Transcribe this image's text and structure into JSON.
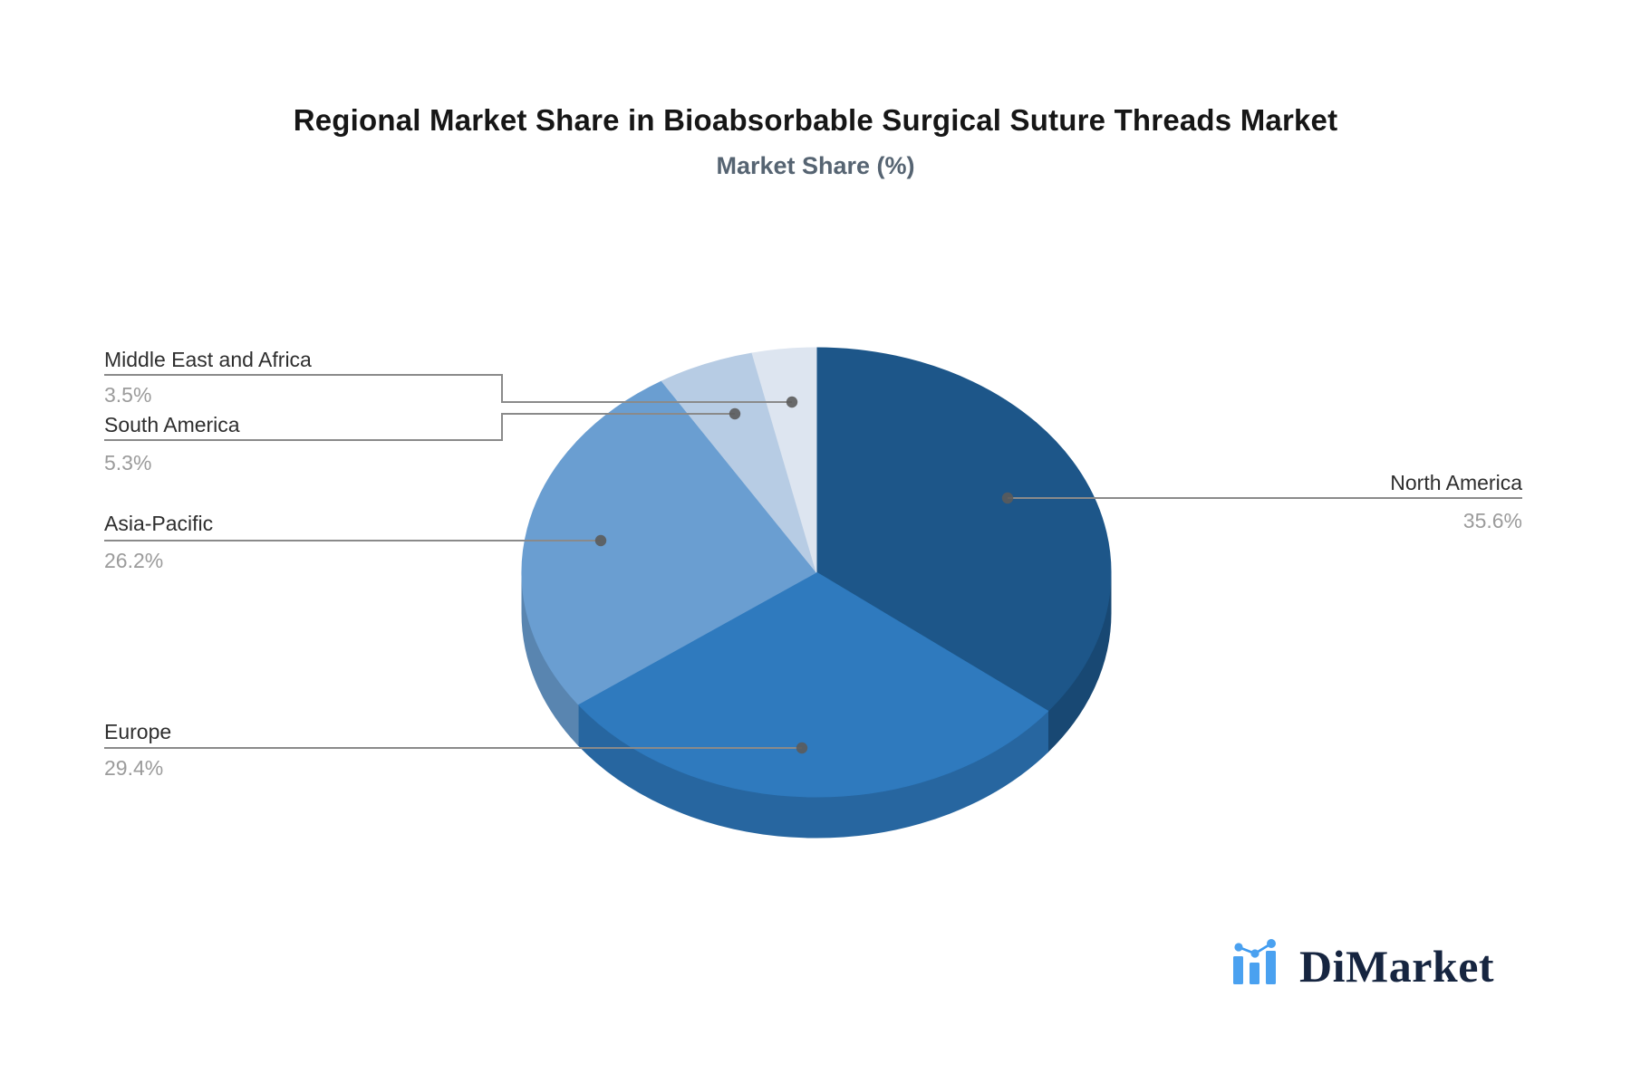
{
  "header": {
    "title": "Regional Market Share in Bioabsorbable Surgical Suture Threads Market",
    "subtitle": "Market Share (%)"
  },
  "chart_data": {
    "type": "pie",
    "title": "Regional Market Share in Bioabsorbable Surgical Suture Threads Market",
    "subtitle": "Market Share (%)",
    "unit": "%",
    "style": "3d-pie",
    "direction": "clockwise",
    "start_angle_deg": 0,
    "legend_position": "callout-labels",
    "slices": [
      {
        "label": "North America",
        "value": 35.6,
        "color": "#1d5689"
      },
      {
        "label": "Europe",
        "value": 29.4,
        "color": "#2f7abe"
      },
      {
        "label": "Asia-Pacific",
        "value": 26.2,
        "color": "#6a9ed1"
      },
      {
        "label": "South America",
        "value": 5.3,
        "color": "#b7cce4"
      },
      {
        "label": "Middle East and Africa",
        "value": 3.5,
        "color": "#dde5f0"
      }
    ]
  },
  "logo": {
    "text": "DiMarket",
    "icon": "bar-chart-with-trend-icon",
    "bar_color": "#4aa1f0",
    "trend_color": "#3d9af0",
    "text_color": "#162540"
  },
  "colors": {
    "background": "#ffffff",
    "title": "#161616",
    "subtitle": "#566472",
    "slice_name_text": "#2e2e2e",
    "slice_value_text": "#9b9b9b",
    "leader_line": "#8a8a8a",
    "leader_dot": "#5b5b5b"
  }
}
